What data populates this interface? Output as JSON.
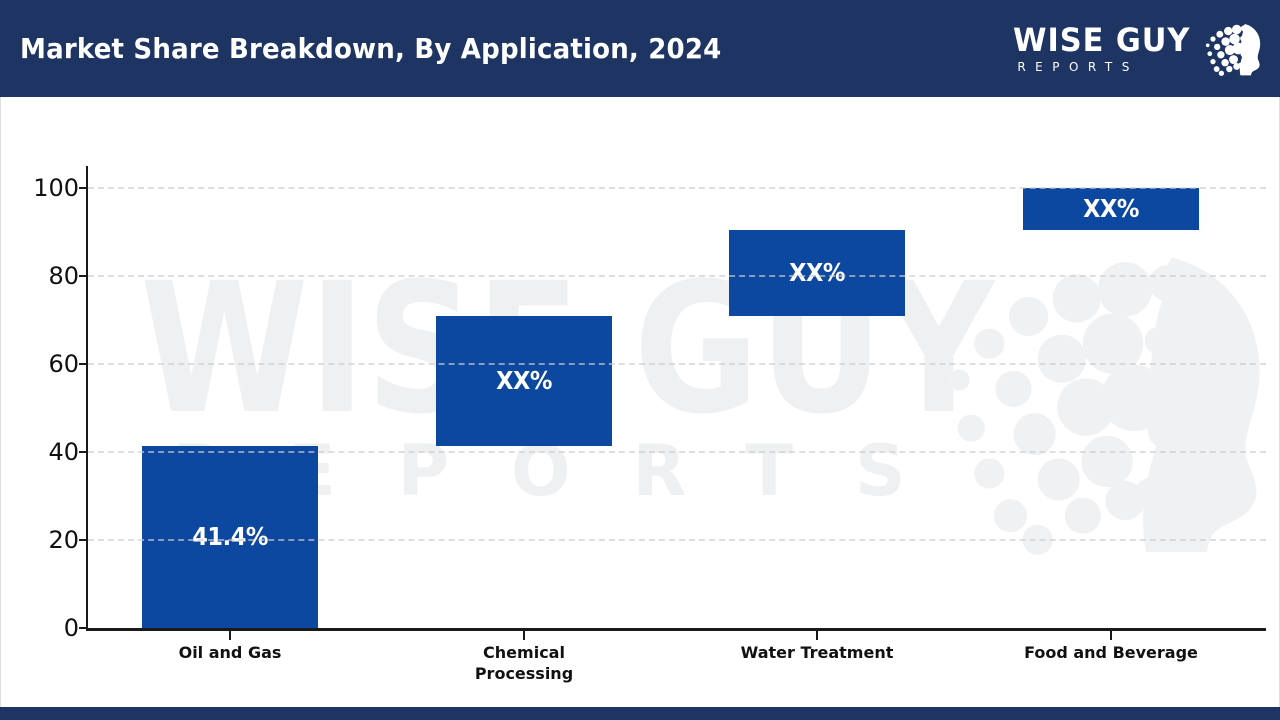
{
  "header": {
    "title": "Market Share Breakdown, By Application, 2024",
    "logo_line1": "WISE GUY",
    "logo_line2": "REPORTS"
  },
  "watermark": {
    "line1": "WISE GUY",
    "line2": "REPORTS"
  },
  "chart_data": {
    "type": "bar",
    "variant": "waterfall",
    "title": "Market Share Breakdown, By Application, 2024",
    "categories": [
      "Oil and Gas",
      "Chemical\nProcessing",
      "Water Treatment",
      "Food and Beverage"
    ],
    "segments": [
      {
        "category": "Oil and Gas",
        "start": 0,
        "end": 41.4,
        "label": "41.4%"
      },
      {
        "category": "Chemical\nProcessing",
        "start": 41.4,
        "end": 71,
        "label": "XX%"
      },
      {
        "category": "Water Treatment",
        "start": 71,
        "end": 90.5,
        "label": "XX%"
      },
      {
        "category": "Food and Beverage",
        "start": 90.5,
        "end": 100,
        "label": "XX%"
      }
    ],
    "yticks": [
      0,
      20,
      40,
      60,
      80,
      100
    ],
    "ylim": [
      0,
      105
    ],
    "xlabel": "",
    "ylabel": "",
    "grid": "horizontal-dashed",
    "legend": false,
    "bar_color": "#0c47a0",
    "axis_color": "#1a1a1a",
    "grid_color": "#cdcdcd"
  }
}
